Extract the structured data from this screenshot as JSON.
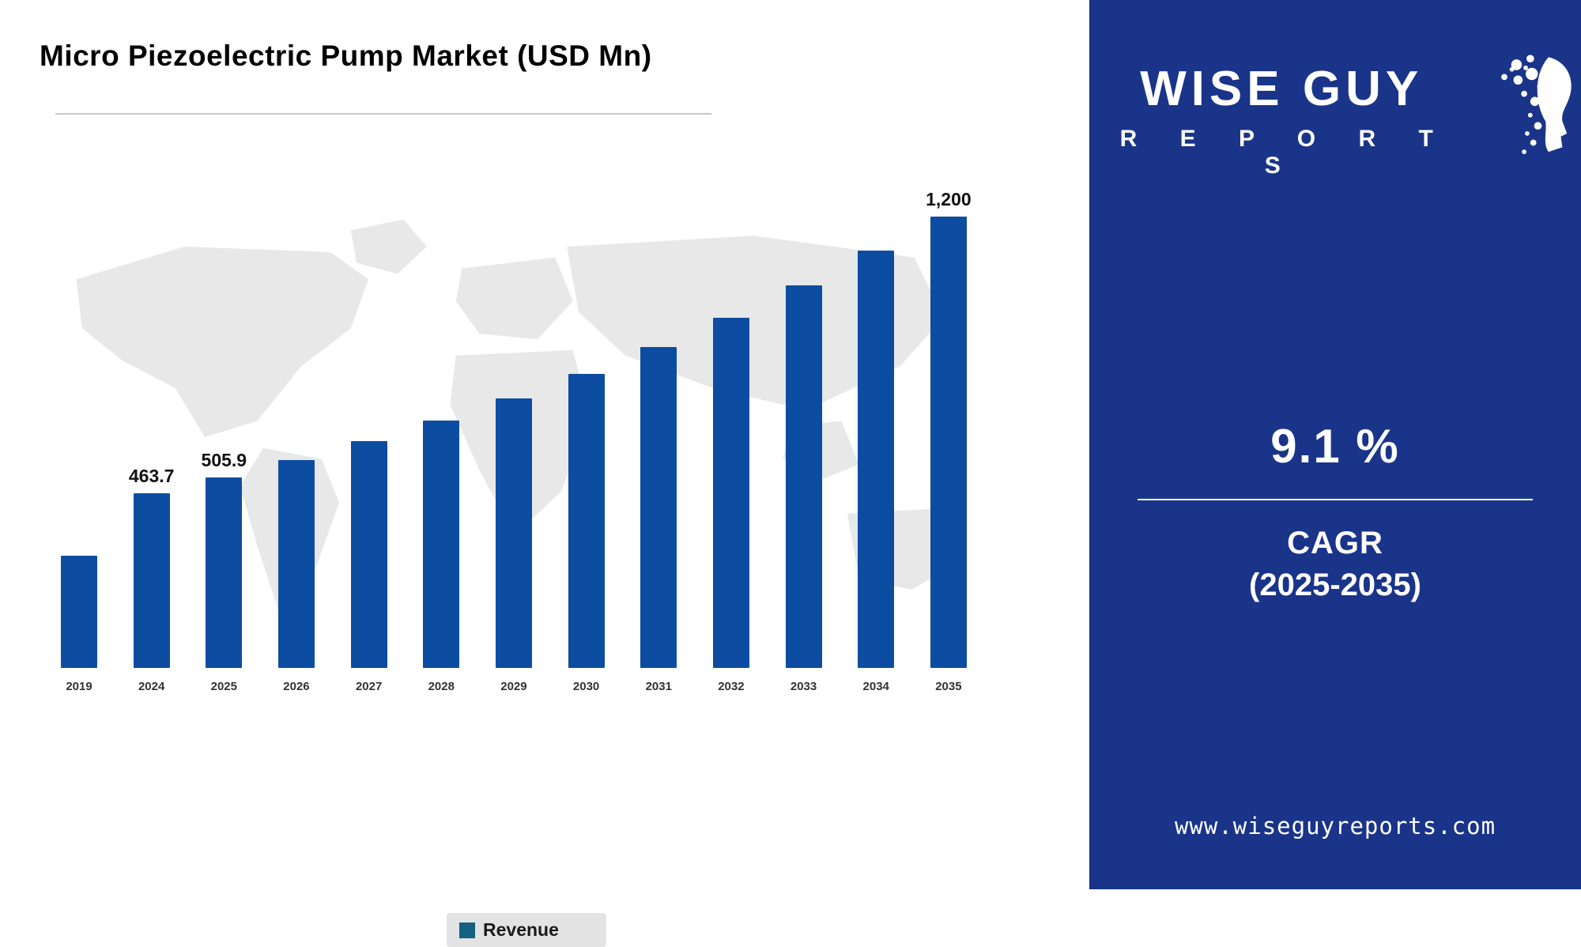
{
  "title": "Micro Piezoelectric Pump Market (USD Mn)",
  "chart_data": {
    "type": "bar",
    "title": "Micro Piezoelectric Pump Market (USD Mn)",
    "xlabel": "",
    "ylabel": "Revenue (USD Mn)",
    "categories": [
      "2019",
      "2024",
      "2025",
      "2026",
      "2027",
      "2028",
      "2029",
      "2030",
      "2031",
      "2032",
      "2033",
      "2034",
      "2035"
    ],
    "values": [
      298,
      463.7,
      505.9,
      551.9,
      602.1,
      656.9,
      716.7,
      781.9,
      853.1,
      930.7,
      1015.4,
      1107.8,
      1200
    ],
    "bar_labels": [
      "",
      "463.7",
      "505.9",
      "",
      "",
      "",
      "",
      "",
      "",
      "",
      "",
      "",
      "1,200"
    ],
    "ylim": [
      0,
      1260
    ],
    "grid": false,
    "legend_position": "bottom",
    "legend_label": "Revenue",
    "bar_color": "#0d4da1",
    "legend_color": "#156082"
  },
  "sidebar": {
    "logo_line1": "WISE GUY",
    "logo_line2": "R E P O R T S",
    "cagr_value": "9.1 %",
    "cagr_label": "CAGR",
    "cagr_period": "(2025-2035)",
    "website": "www.wiseguyreports.com",
    "bg_color": "#1a3489"
  }
}
